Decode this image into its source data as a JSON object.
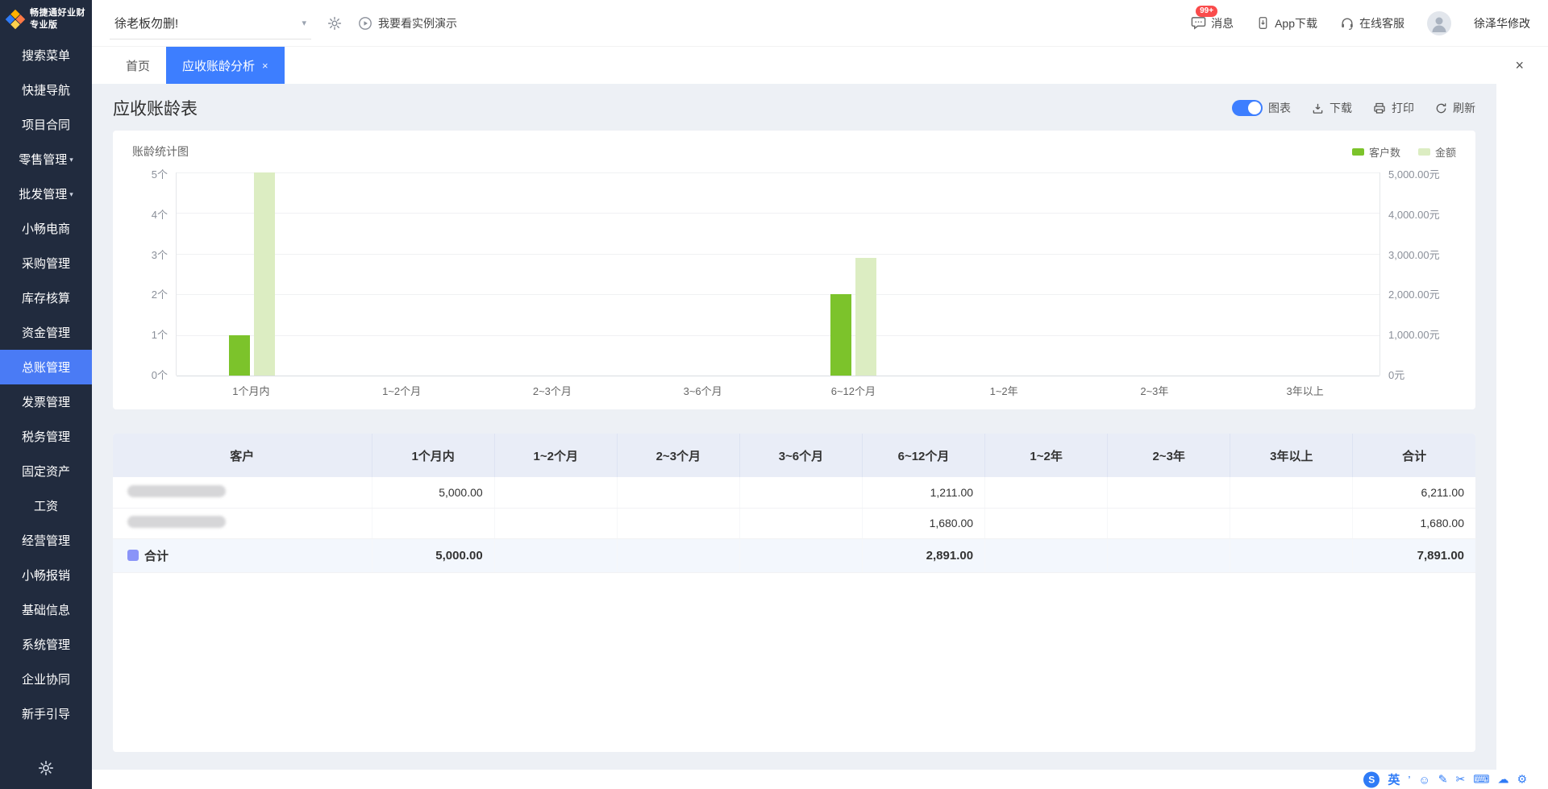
{
  "colors": {
    "accent": "#3d7eff",
    "sidebar_bg": "#212b3e",
    "active_item": "#4a7bf5",
    "badge_red": "#fa4b4b",
    "bar_customers": "#7cc32b",
    "bar_amount": "#dcedc2"
  },
  "icons": {
    "caret": "▾",
    "select_chevron": "▾",
    "close": "×"
  },
  "sidebar": {
    "brand_line1": "畅捷通好业财",
    "brand_line2": "专业版",
    "active_index": 9,
    "items": [
      {
        "label": "搜索菜单"
      },
      {
        "label": "快捷导航"
      },
      {
        "label": "项目合同"
      },
      {
        "label": "零售管理",
        "caret": true
      },
      {
        "label": "批发管理",
        "caret": true
      },
      {
        "label": "小畅电商"
      },
      {
        "label": "采购管理"
      },
      {
        "label": "库存核算"
      },
      {
        "label": "资金管理"
      },
      {
        "label": "总账管理"
      },
      {
        "label": "发票管理"
      },
      {
        "label": "税务管理"
      },
      {
        "label": "固定资产"
      },
      {
        "label": "工资"
      },
      {
        "label": "经营管理"
      },
      {
        "label": "小畅报销"
      },
      {
        "label": "基础信息"
      },
      {
        "label": "系统管理"
      },
      {
        "label": "企业协同"
      },
      {
        "label": "新手引导"
      }
    ]
  },
  "topbar": {
    "company": "徐老板勿删!",
    "demo": "我要看实例演示",
    "messages": "消息",
    "messages_badge": "99+",
    "app_download": "App下载",
    "online_service": "在线客服",
    "username": "徐泽华修改"
  },
  "tabs": [
    {
      "label": "首页",
      "active": false
    },
    {
      "label": "应收账龄分析",
      "active": true,
      "closable": true
    }
  ],
  "page": {
    "title": "应收账龄表",
    "chart_toggle": "图表",
    "download": "下载",
    "print": "打印",
    "refresh": "刷新"
  },
  "chart_data": {
    "type": "bar",
    "title": "账龄统计图",
    "categories": [
      "1个月内",
      "1~2个月",
      "2~3个月",
      "3~6个月",
      "6~12个月",
      "1~2年",
      "2~3年",
      "3年以上"
    ],
    "series": [
      {
        "name": "客户数",
        "color": "#7cc32b",
        "axis": "left",
        "values": [
          1,
          0,
          0,
          0,
          2,
          0,
          0,
          0
        ]
      },
      {
        "name": "金额",
        "color": "#dcedc2",
        "axis": "right",
        "values": [
          5000,
          0,
          0,
          0,
          2891,
          0,
          0,
          0
        ]
      }
    ],
    "left_axis": {
      "max": 5,
      "ticks": [
        "5个",
        "4个",
        "3个",
        "2个",
        "1个",
        "0个"
      ]
    },
    "right_axis": {
      "max": 5000,
      "ticks": [
        "5,000.00元",
        "4,000.00元",
        "3,000.00元",
        "2,000.00元",
        "1,000.00元",
        "0元"
      ]
    },
    "grid": true,
    "legend_position": "top-right"
  },
  "table": {
    "columns": [
      "客户",
      "1个月内",
      "1~2个月",
      "2~3个月",
      "3~6个月",
      "6~12个月",
      "1~2年",
      "2~3年",
      "3年以上",
      "合计"
    ],
    "rows": [
      {
        "redacted": true,
        "values": [
          "5,000.00",
          "",
          "",
          "",
          "1,211.00",
          "",
          "",
          "",
          "6,211.00"
        ]
      },
      {
        "redacted": true,
        "values": [
          "",
          "",
          "",
          "",
          "1,680.00",
          "",
          "",
          "",
          "1,680.00"
        ]
      }
    ],
    "total": {
      "label": "合计",
      "values": [
        "5,000.00",
        "",
        "",
        "",
        "2,891.00",
        "",
        "",
        "",
        "7,891.00"
      ]
    }
  },
  "ime": {
    "logo": "S",
    "lang": "英",
    "icons": [
      {
        "name": "punctuation-icon",
        "glyph": "’"
      },
      {
        "name": "emoji-icon",
        "glyph": "☺"
      },
      {
        "name": "handwriting-icon",
        "glyph": "✎"
      },
      {
        "name": "screenshot-icon",
        "glyph": "✂"
      },
      {
        "name": "keyboard-icon",
        "glyph": "⌨"
      },
      {
        "name": "cloud-icon",
        "glyph": "☁"
      },
      {
        "name": "settings-icon",
        "glyph": "⚙"
      }
    ]
  }
}
